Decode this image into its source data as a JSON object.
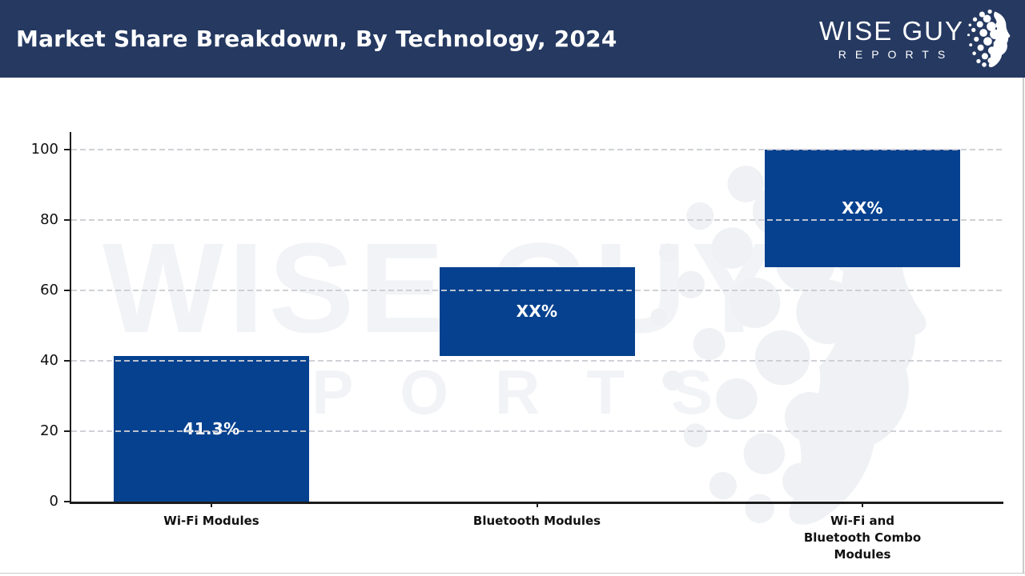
{
  "header": {
    "title": "Market Share Breakdown, By Technology, 2024",
    "logo": {
      "line1": "WISE GUY",
      "line2": "REPORTS"
    }
  },
  "watermark": {
    "line1": "WISE GUY",
    "line2": "REPORTS"
  },
  "chart_data": {
    "type": "bar",
    "subtype": "floating-segment-waterfall",
    "title": "Market Share Breakdown, By Technology, 2024",
    "categories": [
      "Wi-Fi Modules",
      "Bluetooth Modules",
      "Wi-Fi and\nBluetooth Combo\nModules"
    ],
    "segments": [
      {
        "category": "Wi-Fi Modules",
        "start": 0,
        "end": 41.3,
        "label": "41.3%"
      },
      {
        "category": "Bluetooth Modules",
        "start": 41.3,
        "end": 66.7,
        "label": "XX%"
      },
      {
        "category": "Wi-Fi and Bluetooth Combo Modules",
        "start": 66.7,
        "end": 100,
        "label": "XX%"
      }
    ],
    "yticks": [
      0,
      20,
      40,
      60,
      80,
      100
    ],
    "ylim": [
      0,
      105
    ],
    "grid": "horizontal dashed, drawn over bars",
    "legend": "none",
    "bar_color": "#06418f",
    "value_label_color": "#ffffff"
  },
  "colors": {
    "header_bg": "#253961",
    "title_text": "#ffffff",
    "bar": "#06418f",
    "grid": "#cbcdd3",
    "axis": "#1c1c1c",
    "tick_text": "#111111",
    "watermark": "#f2f3f6",
    "frame_border": "#cbcbcb"
  }
}
